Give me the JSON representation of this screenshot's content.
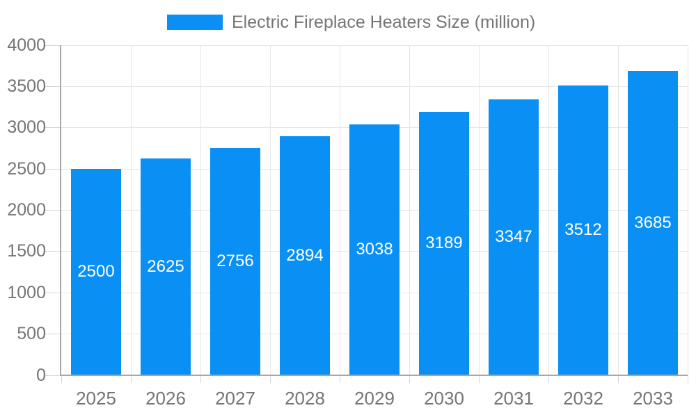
{
  "legend": {
    "label": "Electric Fireplace Heaters Size (million)"
  },
  "chart_data": {
    "type": "bar",
    "title": "",
    "xlabel": "",
    "ylabel": "",
    "legend_position": "top",
    "categories": [
      "2025",
      "2026",
      "2027",
      "2028",
      "2029",
      "2030",
      "2031",
      "2032",
      "2033"
    ],
    "series": [
      {
        "name": "Electric Fireplace Heaters Size (million)",
        "values": [
          2500,
          2625,
          2756,
          2894,
          3038,
          3189,
          3347,
          3512,
          3685
        ]
      }
    ],
    "value_labels_position": "inside-center",
    "ylim": [
      0,
      4000
    ],
    "ytick_step": 500,
    "yticks": [
      0,
      500,
      1000,
      1500,
      2000,
      2500,
      3000,
      3500,
      4000
    ],
    "grid": true,
    "colors": {
      "bar": "#0a90f5",
      "value_text": "#ffffff",
      "axis_text": "#757575",
      "grid_line": "#e6e6e6",
      "axis_line": "#a6a6a6",
      "tick_line": "#d6d6d6",
      "background": "#ffffff"
    }
  }
}
